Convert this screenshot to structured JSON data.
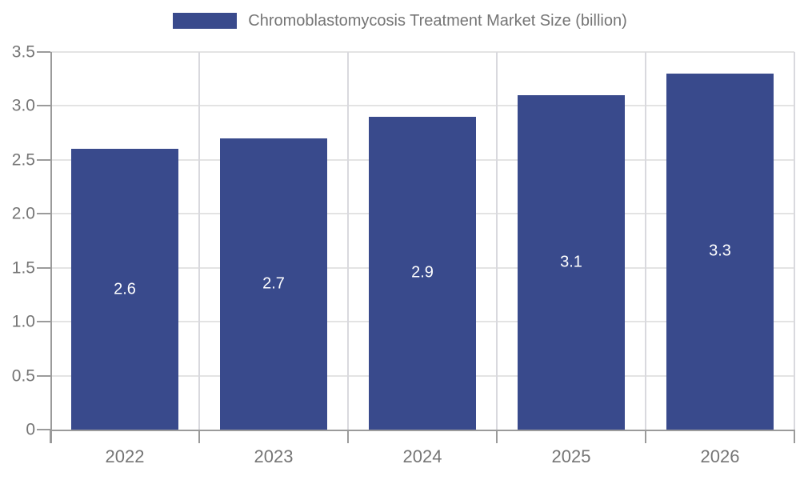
{
  "legend": {
    "label": "Chromoblastomycosis Treatment Market Size (billion)"
  },
  "chart_data": {
    "type": "bar",
    "title": "Chromoblastomycosis Treatment Market Size (billion)",
    "categories": [
      "2022",
      "2023",
      "2024",
      "2025",
      "2026"
    ],
    "values": [
      2.6,
      2.7,
      2.9,
      3.1,
      3.3
    ],
    "bar_labels": [
      "2.6",
      "2.7",
      "2.9",
      "3.1",
      "3.3"
    ],
    "xlabel": "",
    "ylabel": "",
    "ylim": [
      0,
      3.5
    ],
    "ytick_step": 0.5,
    "ytick_labels": [
      "0",
      "0.5",
      "1.0",
      "1.5",
      "2.0",
      "2.5",
      "3.0",
      "3.5"
    ],
    "grid": true,
    "legend_position": "top-center",
    "colors": {
      "bar": "#394a8c",
      "bar_label_text": "#ffffff",
      "axis_text": "#757575",
      "grid_horizontal": "#e3e3e3",
      "grid_vertical": "#d9d9de",
      "axis_line": "#9b9b9b"
    }
  }
}
